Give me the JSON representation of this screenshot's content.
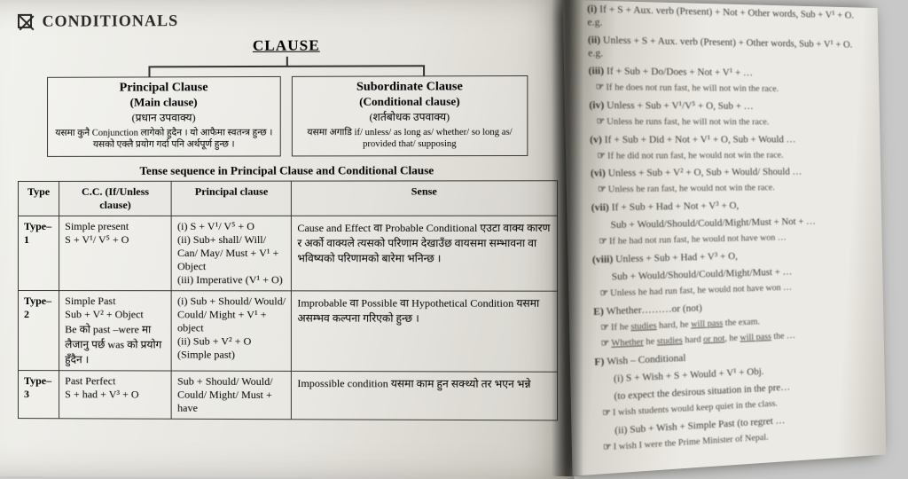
{
  "left": {
    "section_title": "CONDITIONALS",
    "clause_heading": "CLAUSE",
    "principal": {
      "title": "Principal Clause",
      "subtitle": "(Main clause)",
      "dev": "(प्रधान उपवाक्य)",
      "note": "यसमा कुनै Conjunction लागेको हुदैन । यो आफैमा स्वतन्त्र हुन्छ । यसको एक्लै प्रयोग गर्दा पनि अर्थपूर्ण हुन्छ ।"
    },
    "subordinate": {
      "title": "Subordinate Clause",
      "subtitle": "(Conditional clause)",
      "dev": "(शर्तबोधक उपवाक्य)",
      "note": "यसमा अगाडि if/ unless/ as long as/ whether/ so long as/ provided that/ supposing"
    },
    "tense_caption": "Tense sequence in Principal Clause and Conditional Clause",
    "headers": {
      "type": "Type",
      "cc": "C.C. (If/Unless clause)",
      "pc": "Principal clause",
      "sense": "Sense"
    },
    "rows": [
      {
        "type": "Type–1",
        "cc": "Simple present\nS + V¹/ V⁵ + O",
        "pc": "(i) S + V¹/ V⁵ + O\n(ii) Sub+ shall/ Will/ Can/ May/ Must + V¹ + Object\n(iii) Imperative (V¹ + O)",
        "sense": "Cause and Effect वा Probable Conditional एउटा वाक्य कारण र अर्को वाक्यले त्यसको परिणाम देखाउँछ वायसमा सम्भावना वा भविष्यको परिणामको बारेमा भनिन्छ ।"
      },
      {
        "type": "Type–2",
        "cc": "Simple Past\nSub + V² + Object\nBe को past –were मा लैजानु पर्छ was को प्रयोग हुँदैन ।",
        "pc": "(i) Sub + Should/ Would/ Could/ Might + V¹ + object\n(ii) Sub + V² + O (Simple past)",
        "sense": "Improbable वा Possible वा Hypothetical Condition यसमा असम्भव कल्पना गरिएको हुन्छ ।"
      },
      {
        "type": "Type–3",
        "cc": "Past Perfect\nS + had + V³ + O",
        "pc": "Sub + Should/ Would/ Could/ Might/ Must + have",
        "sense": "Impossible condition यसमा काम हुन सक्थ्यो तर भएन भन्ने"
      }
    ]
  },
  "right": {
    "items": [
      {
        "lab": "(i)",
        "text": "If + S + Aux. verb (Present) + Not + Other words, Sub + V¹ + O.   e.g."
      },
      {
        "lab": "(ii)",
        "text": "Unless + S + Aux. verb (Present) + Other words, Sub + V¹ + O.   e.g."
      },
      {
        "lab": "(iii)",
        "text": "If + Sub + Do/Does + Not + V¹ + …"
      },
      {
        "small": true,
        "text": "If he does not run fast, he will not win the race."
      },
      {
        "lab": "(iv)",
        "text": "Unless + Sub + V¹/V⁵ + O, Sub + …"
      },
      {
        "small": true,
        "text": "Unless he runs fast, he will not win the race."
      },
      {
        "lab": "(v)",
        "text": "If + Sub + Did + Not + V¹ + O, Sub + Would …"
      },
      {
        "small": true,
        "text": "If he did not run fast, he would not win the race."
      },
      {
        "lab": "(vi)",
        "text": "Unless + Sub + V² + O, Sub + Would/ Should …"
      },
      {
        "small": true,
        "text": "Unless he ran fast, he would not win the race."
      },
      {
        "lab": "(vii)",
        "text": "If + Sub + Had + Not + V³ + O,"
      },
      {
        "cont": true,
        "text": "Sub + Would/Should/Could/Might/Must + Not + …"
      },
      {
        "small": true,
        "text": "If he had not run fast, he would not have won …"
      },
      {
        "lab": "(viii)",
        "text": "Unless + Sub + Had + V³ + O,"
      },
      {
        "cont": true,
        "text": "Sub + Would/Should/Could/Might/Must + …"
      },
      {
        "small": true,
        "text": "Unless he had run fast, he would not have won …"
      },
      {
        "lab": "E)",
        "text": "Whether………or (not)"
      },
      {
        "small": true,
        "html": "If he <span class='u'>studies</span> hard, he <span class='u'>will pass</span> the exam."
      },
      {
        "small": true,
        "html": "<span class='u'>Whether</span> he <span class='u'>studies</span> hard <span class='u'>or not</span>, he <span class='u'>will pass</span> the …"
      },
      {
        "lab": "F)",
        "text": "Wish – Conditional"
      },
      {
        "cont": true,
        "text": "(i) S + Wish + S + Would + V¹ + Obj."
      },
      {
        "cont": true,
        "text": "(to expect the desirous situation in the pre…"
      },
      {
        "small": true,
        "text": "I wish students would keep quiet in the class."
      },
      {
        "cont": true,
        "text": "(ii) Sub + Wish + Simple Past (to regret …"
      },
      {
        "small": true,
        "text": "I wish I were the Prime Minister of Nepal."
      }
    ]
  },
  "colors": {
    "ink": "#2a2824",
    "paper_left": "#e6e4de",
    "paper_right": "#eceae4",
    "border": "#3a382f"
  }
}
